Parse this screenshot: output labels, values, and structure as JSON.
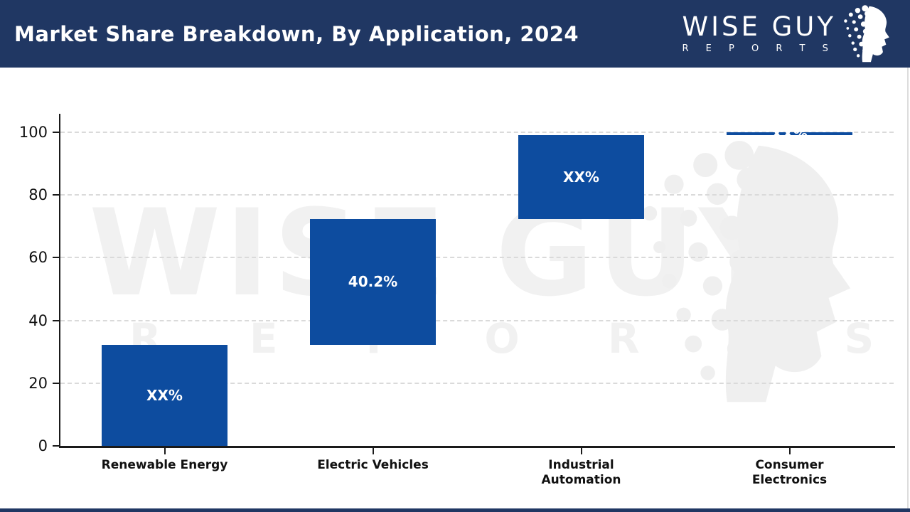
{
  "header": {
    "title": "Market Share Breakdown, By Application, 2024",
    "logo": {
      "name_line": "WISE GUY",
      "reports_line": "R E P O R T S"
    }
  },
  "watermark": {
    "name_line": "WISE GUY",
    "reports_line": "R E P O R T S"
  },
  "chart_data": {
    "type": "bar",
    "subtype": "floating-segment (waterfall-style) market share chart",
    "title": "Market Share Breakdown, By Application, 2024",
    "categories": [
      "Renewable Energy",
      "Electric Vehicles",
      "Industrial Automation",
      "Consumer Electronics"
    ],
    "category_label_lines": [
      [
        "Renewable Energy"
      ],
      [
        "Electric Vehicles"
      ],
      [
        "Industrial",
        "Automation"
      ],
      [
        "Consumer",
        "Electronics"
      ]
    ],
    "segments": [
      {
        "category": "Renewable Energy",
        "start": 0,
        "end": 32.2,
        "label": "XX%"
      },
      {
        "category": "Electric Vehicles",
        "start": 32.2,
        "end": 72.4,
        "label": "40.2%",
        "value": 40.2
      },
      {
        "category": "Industrial Automation",
        "start": 72.4,
        "end": 99.2,
        "label": "XX%"
      },
      {
        "category": "Consumer Electronics",
        "start": 99.2,
        "end": 100,
        "label": "XX%"
      }
    ],
    "ylim": [
      0,
      100
    ],
    "yticks": [
      0,
      20,
      40,
      60,
      80,
      100
    ],
    "xlabel": "",
    "ylabel": "",
    "grid": "horizontal-dashed",
    "legend": "none",
    "colors": {
      "bar": "#0d4c9f",
      "bar_label": "#ffffff",
      "grid": "#dadada",
      "axis": "#1a1a1a",
      "header_bg": "#203763",
      "watermark": "#f1f1f1"
    }
  }
}
